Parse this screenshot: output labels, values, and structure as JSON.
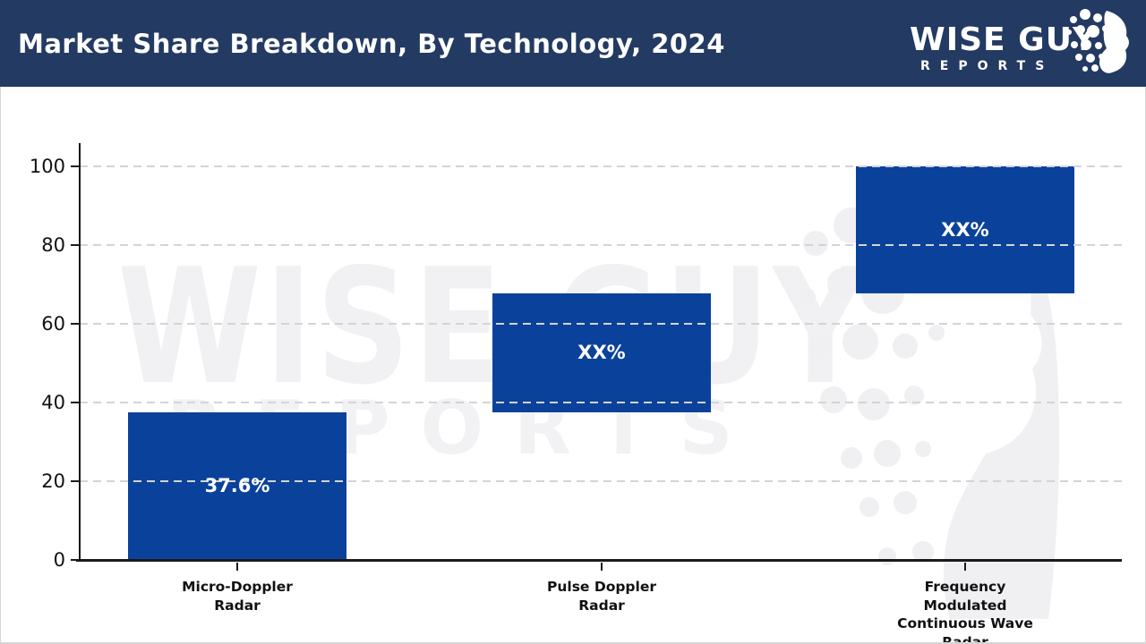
{
  "header": {
    "bg_color": "#233a63",
    "title": "Market Share Breakdown, By Technology, 2024",
    "logo": {
      "wordmark": "WISE GUY",
      "subtext": "REPORTS"
    }
  },
  "watermark": {
    "wordmark": "WISE GUY",
    "subtext": "REPORTS"
  },
  "chart_data": {
    "type": "bar",
    "subtype": "floating-segment-waterfall",
    "title": "Market Share Breakdown, By Technology, 2024",
    "categories": [
      "Micro-Doppler Radar",
      "Pulse Doppler Radar",
      "Frequency Modulated Continuous Wave Radar"
    ],
    "category_lines": [
      [
        "Micro-Doppler",
        "Radar"
      ],
      [
        "Pulse Doppler",
        "Radar"
      ],
      [
        "Frequency",
        "Modulated",
        "Continuous Wave",
        "Radar"
      ]
    ],
    "segments": [
      {
        "category": "Micro-Doppler Radar",
        "start": 0,
        "end": 37.6,
        "label": "37.6%"
      },
      {
        "category": "Pulse Doppler Radar",
        "start": 37.6,
        "end": 67.8,
        "label": "XX%"
      },
      {
        "category": "Frequency Modulated Continuous Wave Radar",
        "start": 67.8,
        "end": 100,
        "label": "XX%"
      }
    ],
    "xlabel": "",
    "ylabel": "",
    "ylim": [
      0,
      100
    ],
    "yticks": [
      0,
      20,
      40,
      60,
      80,
      100
    ],
    "grid": "horizontal-dashed",
    "legend": "none",
    "bar_color": "#0a429b",
    "bar_label_color": "#ffffff",
    "axis_color": "#1a1a1a",
    "grid_color": "#d4d4d4"
  }
}
